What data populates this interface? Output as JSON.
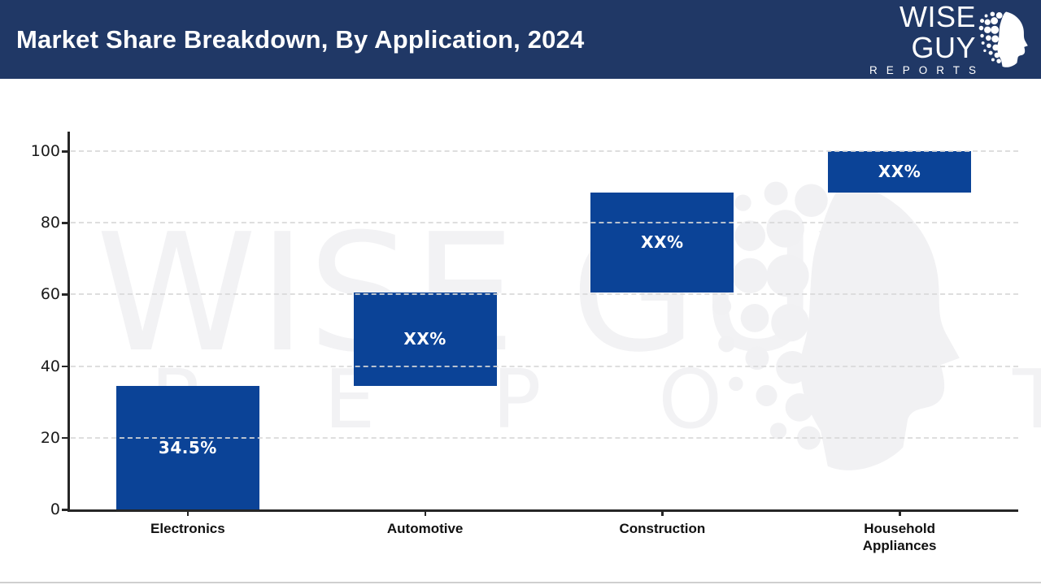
{
  "header": {
    "title": "Market Share Breakdown, By Application, 2024",
    "logo": {
      "line1": "WISE GUY",
      "line2": "REPORTS"
    }
  },
  "watermark": {
    "line1": "WISE GUY",
    "line2": "REPORTS"
  },
  "colors": {
    "header_bg": "#203866",
    "bar": "#0b4397",
    "grid": "#d8d8d8",
    "axis": "#262626",
    "bar_label": "#ffffff",
    "watermark": "#f2f2f4"
  },
  "chart_data": {
    "type": "bar",
    "subtype": "waterfall",
    "title": "Market Share Breakdown, By Application, 2024",
    "categories": [
      "Electronics",
      "Automotive",
      "Construction",
      "Household Appliances"
    ],
    "segments": [
      {
        "category": "Electronics",
        "start": 0,
        "end": 34.5,
        "label": "34.5%"
      },
      {
        "category": "Automotive",
        "start": 34.5,
        "end": 60.5,
        "label": "XX%"
      },
      {
        "category": "Construction",
        "start": 60.5,
        "end": 88.5,
        "label": "XX%"
      },
      {
        "category": "Household Appliances",
        "start": 88.5,
        "end": 100,
        "label": "XX%"
      }
    ],
    "y_ticks": [
      0,
      20,
      40,
      60,
      80,
      100
    ],
    "ylim": [
      0,
      105
    ],
    "xlabel": "",
    "ylabel": "",
    "grid": "horizontal-dashed",
    "legend": "none"
  }
}
